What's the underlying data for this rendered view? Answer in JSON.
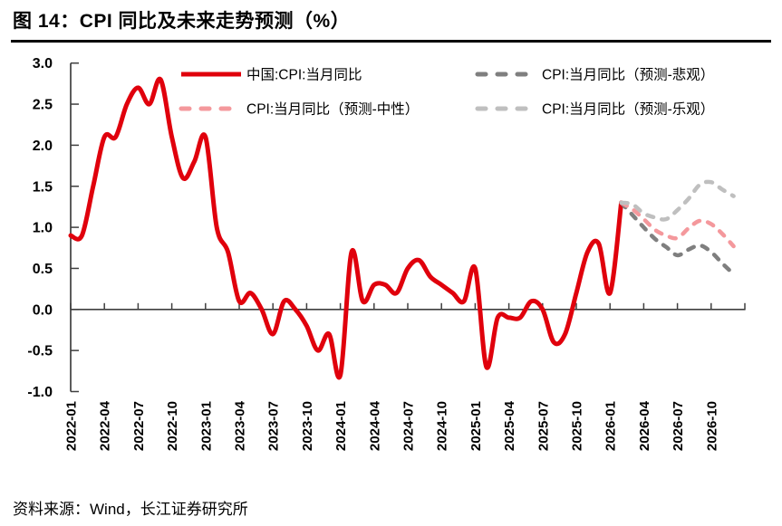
{
  "header": {
    "title": "图 14：CPI 同比及未来走势预测（%）"
  },
  "footer": {
    "source": "资料来源：Wind，长江证券研究所"
  },
  "colors": {
    "actual": "#e0000c",
    "pessimistic": "#7f7f7f",
    "neutral": "#f4989c",
    "optimistic": "#bfbfbf",
    "axis": "#3f3f3f",
    "text": "#000000"
  },
  "chart_data": {
    "type": "line",
    "title": "图 14：CPI 同比及未来走势预测（%）",
    "xlabel": "",
    "ylabel": "",
    "ylim": [
      -1.0,
      3.0
    ],
    "y_ticks": [
      3.0,
      2.5,
      2.0,
      1.5,
      1.0,
      0.5,
      0.0,
      -0.5,
      -1.0
    ],
    "x_tick_labels": [
      "2022-01",
      "2022-04",
      "2022-07",
      "2022-10",
      "2023-01",
      "2023-04",
      "2023-07",
      "2023-10",
      "2024-01",
      "2024-04",
      "2024-07",
      "2024-10",
      "2025-01",
      "2025-04",
      "2025-07",
      "2025-10",
      "2026-01",
      "2026-04",
      "2026-07",
      "2026-10"
    ],
    "x_start_month": "2022-01",
    "months_span": 60,
    "grid": false,
    "legend_position": "top",
    "series": [
      {
        "name": "中国:CPI:当月同比",
        "style": "solid",
        "color_key": "actual",
        "start_month_index": 0,
        "values": [
          0.9,
          0.9,
          1.5,
          2.1,
          2.1,
          2.5,
          2.7,
          2.5,
          2.8,
          2.1,
          1.6,
          1.8,
          2.1,
          1.0,
          0.7,
          0.1,
          0.2,
          0.0,
          -0.3,
          0.1,
          0.0,
          -0.2,
          -0.5,
          -0.3,
          -0.8,
          0.7,
          0.1,
          0.3,
          0.3,
          0.2,
          0.5,
          0.6,
          0.4,
          0.3,
          0.2,
          0.1,
          0.5,
          -0.7,
          -0.1,
          -0.1,
          -0.1,
          0.1,
          0.0,
          -0.4,
          -0.3,
          0.2,
          0.7,
          0.8,
          0.2,
          1.3
        ]
      },
      {
        "name": "CPI:当月同比（预测-悲观）",
        "style": "dashed",
        "color_key": "pessimistic",
        "start_month_index": 49,
        "values": [
          1.3,
          1.15,
          1.0,
          0.86,
          0.76,
          0.66,
          0.73,
          0.78,
          0.7,
          0.56,
          0.43
        ]
      },
      {
        "name": "CPI:当月同比（预测-中性）",
        "style": "dashed",
        "color_key": "neutral",
        "start_month_index": 49,
        "values": [
          1.3,
          1.22,
          1.1,
          0.97,
          0.9,
          0.87,
          0.99,
          1.08,
          1.04,
          0.92,
          0.77
        ]
      },
      {
        "name": "CPI:当月同比（预测-乐观）",
        "style": "dashed",
        "color_key": "optimistic",
        "start_month_index": 49,
        "values": [
          1.3,
          1.28,
          1.17,
          1.12,
          1.1,
          1.21,
          1.35,
          1.52,
          1.55,
          1.46,
          1.38
        ]
      }
    ]
  }
}
